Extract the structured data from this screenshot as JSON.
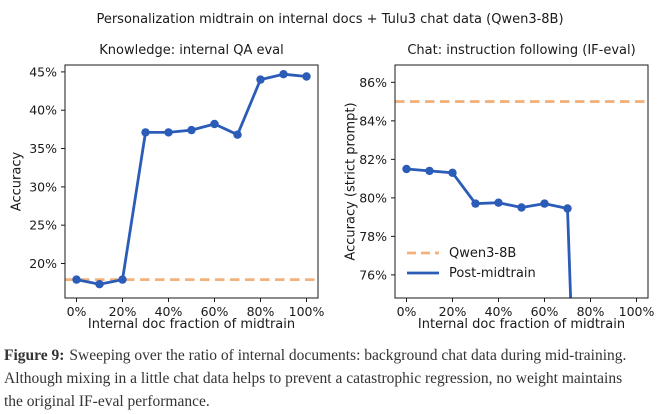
{
  "figure_title": "Personalization midtrain on internal docs + Tulu3 chat data (Qwen3-8B)",
  "colors": {
    "series_blue": "#2b5cb8",
    "baseline_orange": "#f3b17c",
    "axis": "#1a1a1a",
    "text": "#1a1a1a",
    "caption_text": "#333333"
  },
  "legend": {
    "position": "lower-left-of-right-chart",
    "items": [
      {
        "label": "Qwen3-8B",
        "style": "dashed",
        "color_key": "baseline_orange"
      },
      {
        "label": "Post-midtrain",
        "style": "solid",
        "color_key": "series_blue"
      }
    ]
  },
  "caption": {
    "label": "Figure 9:",
    "lines": [
      "Sweeping over the ratio of internal documents: background chat data during mid-training.",
      "Although mixing in a little chat data helps to prevent a catastrophic regression, no weight maintains",
      "the original IF-eval performance."
    ]
  },
  "chart_data": [
    {
      "type": "line",
      "title": "Knowledge: internal QA eval",
      "xlabel": "Internal doc fraction of midtrain",
      "ylabel": "Accuracy",
      "grid": false,
      "xlim": [
        -5,
        105
      ],
      "ylim": [
        15.5,
        45.9
      ],
      "x_ticks": [
        0,
        20,
        40,
        60,
        80,
        100
      ],
      "x_tick_labels": [
        "0%",
        "20%",
        "40%",
        "60%",
        "80%",
        "100%"
      ],
      "y_ticks": [
        20,
        25,
        30,
        35,
        40,
        45
      ],
      "y_tick_labels": [
        "20%",
        "25%",
        "30%",
        "35%",
        "40%",
        "45%"
      ],
      "series": [
        {
          "name": "Qwen3-8B",
          "type": "baseline",
          "value": 17.9,
          "style": "dashed",
          "color_key": "baseline_orange"
        },
        {
          "name": "Post-midtrain",
          "type": "line_markers",
          "style": "solid",
          "color_key": "series_blue",
          "x": [
            0,
            10,
            20,
            30,
            40,
            50,
            60,
            70,
            80,
            90,
            100
          ],
          "y": [
            17.9,
            17.3,
            17.9,
            37.1,
            37.1,
            37.4,
            38.2,
            36.8,
            44.0,
            44.7,
            44.4
          ]
        }
      ]
    },
    {
      "type": "line",
      "title": "Chat: instruction following (IF-eval)",
      "xlabel": "Internal doc fraction of midtrain",
      "ylabel": "Accuracy (strict prompt)",
      "grid": false,
      "xlim": [
        -5,
        105
      ],
      "ylim": [
        74.8,
        86.9
      ],
      "x_ticks": [
        0,
        20,
        40,
        60,
        80,
        100
      ],
      "x_tick_labels": [
        "0%",
        "20%",
        "40%",
        "60%",
        "80%",
        "100%"
      ],
      "y_ticks": [
        76,
        78,
        80,
        82,
        84,
        86
      ],
      "y_tick_labels": [
        "76%",
        "78%",
        "80%",
        "82%",
        "84%",
        "86%"
      ],
      "series": [
        {
          "name": "Qwen3-8B",
          "type": "baseline",
          "value": 85.0,
          "style": "dashed",
          "color_key": "baseline_orange"
        },
        {
          "name": "Post-midtrain",
          "type": "line_markers",
          "style": "solid",
          "color_key": "series_blue",
          "x": [
            0,
            10,
            20,
            30,
            40,
            50,
            60,
            70
          ],
          "y": [
            81.5,
            81.4,
            81.3,
            79.7,
            79.75,
            79.5,
            79.7,
            79.45
          ],
          "drop_below_axis_after_last": true,
          "note": "line plunges below the visible axis just after 70% (catastrophic regression)"
        }
      ]
    }
  ]
}
